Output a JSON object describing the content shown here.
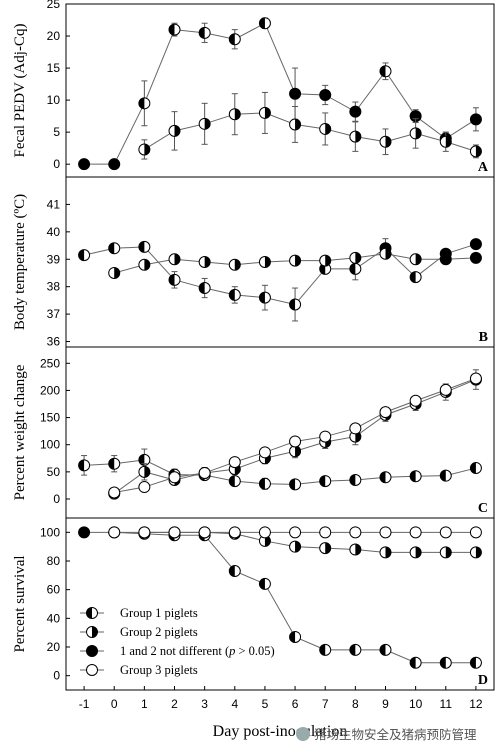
{
  "x_ticks": [
    -1,
    0,
    1,
    2,
    3,
    4,
    5,
    6,
    7,
    8,
    9,
    10,
    11,
    12
  ],
  "x_label": "Day post-inoculation",
  "watermark": "猪场生物安全及猪病预防管理",
  "legend": [
    {
      "label": "Group 1 piglets",
      "marker": "left-half"
    },
    {
      "label": "Group 2 piglets",
      "marker": "right-half"
    },
    {
      "label": "1 and 2 not different (p > 0.05)",
      "marker": "filled"
    },
    {
      "label": "Group 3 piglets",
      "marker": "open"
    }
  ],
  "chart_data": [
    {
      "type": "line",
      "panel": "A",
      "ylabel": "Fecal PEDV (Adj-Cq)",
      "ylim": [
        -2,
        25
      ],
      "yticks": [
        0,
        5,
        10,
        15,
        20,
        25
      ],
      "series": [
        {
          "name": "Group 1 piglets",
          "marker": "left-half",
          "points": [
            [
              -1,
              0,
              "filled",
              null
            ],
            [
              0,
              0,
              "filled",
              null
            ],
            [
              1,
              9.5,
              "left-half",
              3.5
            ],
            [
              2,
              21,
              "left-half",
              1
            ],
            [
              3,
              20.5,
              "left-half",
              1.5
            ],
            [
              4,
              19.5,
              "left-half",
              1.5
            ],
            [
              5,
              22,
              "left-half",
              0.8
            ],
            [
              6,
              11,
              "filled",
              4
            ],
            [
              7,
              10.8,
              "filled",
              1.5
            ],
            [
              8,
              8.2,
              "filled",
              1.5
            ],
            [
              9,
              14.5,
              "left-half",
              1.3
            ],
            [
              10,
              7.5,
              "filled",
              1
            ],
            [
              11,
              4,
              "filled",
              1
            ],
            [
              12,
              7,
              "filled",
              1.8
            ]
          ]
        },
        {
          "name": "Group 2 piglets",
          "marker": "right-half",
          "points": [
            [
              1,
              2.3,
              "right-half",
              1.5
            ],
            [
              2,
              5.2,
              "right-half",
              3
            ],
            [
              3,
              6.3,
              "right-half",
              3.2
            ],
            [
              4,
              7.8,
              "right-half",
              3.2
            ],
            [
              5,
              8,
              "right-half",
              3.2
            ],
            [
              6,
              6.2,
              "right-half",
              2.8
            ],
            [
              7,
              5.5,
              "right-half",
              2.5
            ],
            [
              8,
              4.3,
              "right-half",
              2.3
            ],
            [
              9,
              3.5,
              "right-half",
              2
            ],
            [
              10,
              4.8,
              "right-half",
              2.3
            ],
            [
              11,
              3.5,
              "right-half",
              1.5
            ],
            [
              12,
              2,
              "right-half",
              1
            ]
          ]
        }
      ]
    },
    {
      "type": "line",
      "panel": "B",
      "ylabel": "Body temperature (ºC)",
      "ylim": [
        35.8,
        42
      ],
      "yticks": [
        36,
        37,
        38,
        39,
        40,
        41
      ],
      "series": [
        {
          "name": "Group 1 piglets",
          "marker": "left-half",
          "points": [
            [
              -1,
              39.15,
              "left-half",
              0.1
            ],
            [
              0,
              39.4,
              "left-half",
              0.15
            ],
            [
              1,
              39.45,
              "left-half",
              0.15
            ],
            [
              2,
              38.25,
              "left-half",
              0.3
            ],
            [
              3,
              37.95,
              "left-half",
              0.35
            ],
            [
              4,
              37.7,
              "left-half",
              0.3
            ],
            [
              5,
              37.6,
              "left-half",
              0.45
            ],
            [
              6,
              37.35,
              "left-half",
              0.6
            ],
            [
              7,
              38.65,
              "left-half",
              0.15
            ],
            [
              8,
              38.65,
              "left-half",
              0.4
            ],
            [
              9,
              39.4,
              "filled",
              0.35
            ],
            [
              10,
              38.35,
              "left-half",
              0.1
            ],
            [
              11,
              39.2,
              "filled",
              0.1
            ],
            [
              12,
              39.55,
              "filled",
              0.1
            ]
          ]
        },
        {
          "name": "Group 2 piglets",
          "marker": "right-half",
          "points": [
            [
              0,
              38.5,
              "right-half",
              0.1
            ],
            [
              1,
              38.8,
              "right-half",
              0.15
            ],
            [
              2,
              39.0,
              "right-half",
              0.1
            ],
            [
              3,
              38.9,
              "right-half",
              0.1
            ],
            [
              4,
              38.8,
              "right-half",
              0.15
            ],
            [
              5,
              38.9,
              "right-half",
              0.15
            ],
            [
              6,
              38.95,
              "right-half",
              0.15
            ],
            [
              7,
              38.95,
              "right-half",
              0.1
            ],
            [
              8,
              39.05,
              "right-half",
              0.15
            ],
            [
              9,
              39.2,
              "right-half",
              0.15
            ],
            [
              10,
              39.0,
              "right-half",
              0.1
            ],
            [
              11,
              39.0,
              "filled",
              0.1
            ],
            [
              12,
              39.05,
              "filled",
              0.1
            ]
          ]
        }
      ]
    },
    {
      "type": "line",
      "panel": "C",
      "ylabel": "Percent weight change",
      "ylim": [
        -35,
        280
      ],
      "yticks": [
        0,
        50,
        100,
        150,
        200,
        250
      ],
      "series": [
        {
          "name": "Group 1 piglets",
          "marker": "left-half",
          "points": [
            [
              -1,
              62,
              "left-half",
              18
            ],
            [
              0,
              65,
              "left-half",
              15
            ],
            [
              1,
              72,
              "left-half",
              20
            ],
            [
              2,
              45,
              "left-half",
              10
            ],
            [
              3,
              44,
              "left-half",
              8
            ],
            [
              4,
              33,
              "left-half",
              6
            ],
            [
              5,
              28,
              "left-half",
              10
            ],
            [
              6,
              27,
              "left-half",
              6
            ],
            [
              7,
              33,
              "left-half",
              5
            ],
            [
              8,
              35,
              "left-half",
              5
            ],
            [
              9,
              40,
              "left-half",
              5
            ],
            [
              10,
              42,
              "left-half",
              5
            ],
            [
              11,
              43,
              "left-half",
              5
            ],
            [
              12,
              57,
              "left-half",
              8
            ]
          ]
        },
        {
          "name": "Group 2 piglets",
          "marker": "right-half",
          "points": [
            [
              0,
              10,
              "right-half",
              5
            ],
            [
              1,
              50,
              "right-half",
              15
            ],
            [
              2,
              35,
              "right-half",
              8
            ],
            [
              3,
              48,
              "right-half",
              10
            ],
            [
              4,
              55,
              "right-half",
              10
            ],
            [
              5,
              75,
              "right-half",
              10
            ],
            [
              6,
              88,
              "right-half",
              12
            ],
            [
              7,
              105,
              "right-half",
              12
            ],
            [
              8,
              115,
              "right-half",
              15
            ],
            [
              9,
              155,
              "right-half",
              12
            ],
            [
              10,
              175,
              "right-half",
              12
            ],
            [
              11,
              197,
              "right-half",
              15
            ],
            [
              12,
              220,
              "right-half",
              18
            ]
          ]
        },
        {
          "name": "Group 3 piglets",
          "marker": "open",
          "points": [
            [
              0,
              12,
              "open",
              null
            ],
            [
              1,
              22,
              "open",
              null
            ],
            [
              2,
              40,
              "open",
              null
            ],
            [
              3,
              48,
              "open",
              null
            ],
            [
              4,
              68,
              "open",
              null
            ],
            [
              5,
              86,
              "open",
              null
            ],
            [
              6,
              106,
              "open",
              null
            ],
            [
              7,
              115,
              "open",
              null
            ],
            [
              8,
              130,
              "open",
              null
            ],
            [
              9,
              160,
              "open",
              null
            ],
            [
              10,
              181,
              "open",
              null
            ],
            [
              11,
              201,
              "open",
              null
            ],
            [
              12,
              222,
              "open",
              null
            ]
          ]
        }
      ]
    },
    {
      "type": "line",
      "panel": "D",
      "ylabel": "Percent survival",
      "ylim": [
        -10,
        110
      ],
      "yticks": [
        0,
        20,
        40,
        60,
        80,
        100
      ],
      "series": [
        {
          "name": "Group 1 piglets",
          "marker": "left-half",
          "points": [
            [
              -1,
              100,
              "filled",
              null
            ],
            [
              0,
              100,
              "filled",
              null
            ],
            [
              1,
              99,
              "left-half",
              null
            ],
            [
              2,
              98,
              "left-half",
              null
            ],
            [
              3,
              98,
              "left-half",
              null
            ],
            [
              4,
              73,
              "left-half",
              null
            ],
            [
              5,
              64,
              "left-half",
              null
            ],
            [
              6,
              27,
              "left-half",
              null
            ],
            [
              7,
              18,
              "left-half",
              null
            ],
            [
              8,
              18,
              "left-half",
              null
            ],
            [
              9,
              18,
              "left-half",
              null
            ],
            [
              10,
              9,
              "left-half",
              null
            ],
            [
              11,
              9,
              "left-half",
              null
            ],
            [
              12,
              9,
              "left-half",
              null
            ]
          ]
        },
        {
          "name": "Group 2 piglets",
          "marker": "right-half",
          "points": [
            [
              1,
              100,
              "right-half",
              null
            ],
            [
              2,
              100,
              "right-half",
              null
            ],
            [
              3,
              100,
              "right-half",
              null
            ],
            [
              4,
              99,
              "right-half",
              null
            ],
            [
              5,
              94,
              "right-half",
              null
            ],
            [
              6,
              90,
              "right-half",
              null
            ],
            [
              7,
              89,
              "right-half",
              null
            ],
            [
              8,
              88,
              "right-half",
              null
            ],
            [
              9,
              86,
              "right-half",
              null
            ],
            [
              10,
              86,
              "right-half",
              null
            ],
            [
              11,
              86,
              "right-half",
              null
            ],
            [
              12,
              86,
              "right-half",
              null
            ]
          ]
        },
        {
          "name": "Group 3 piglets",
          "marker": "open",
          "points": [
            [
              0,
              100,
              "open",
              null
            ],
            [
              1,
              100,
              "open",
              null
            ],
            [
              2,
              100,
              "open",
              null
            ],
            [
              3,
              100,
              "open",
              null
            ],
            [
              4,
              100,
              "open",
              null
            ],
            [
              5,
              100,
              "open",
              null
            ],
            [
              6,
              100,
              "open",
              null
            ],
            [
              7,
              100,
              "open",
              null
            ],
            [
              8,
              100,
              "open",
              null
            ],
            [
              9,
              100,
              "open",
              null
            ],
            [
              10,
              100,
              "open",
              null
            ],
            [
              11,
              100,
              "open",
              null
            ],
            [
              12,
              100,
              "open",
              null
            ]
          ]
        }
      ]
    }
  ]
}
